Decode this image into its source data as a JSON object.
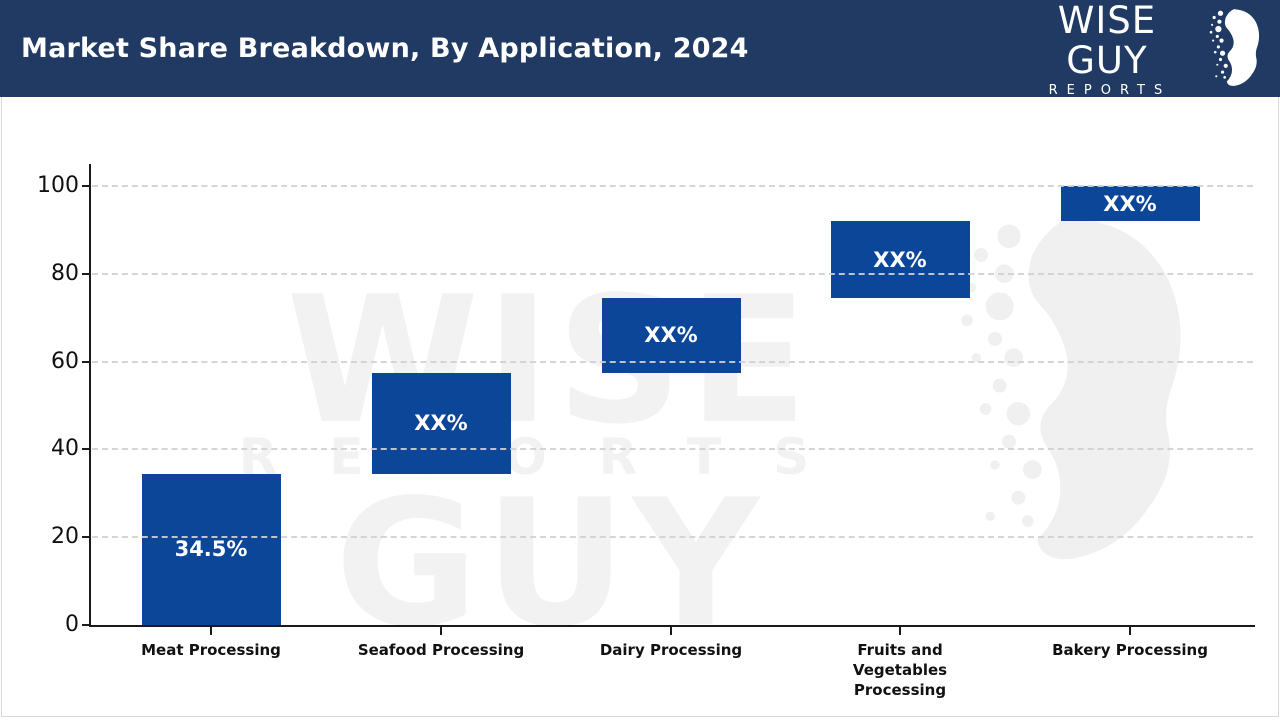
{
  "header": {
    "title": "Market Share Breakdown, By Application, 2024"
  },
  "logo": {
    "line1": "WISE GUY",
    "line2": "REPORTS"
  },
  "watermark": {
    "line1": "WISE GUY",
    "line2": "REPORTS"
  },
  "colors": {
    "header_bg": "#213A64",
    "bar": "#0B4699",
    "bar_label": "#FFFFFF",
    "axis": "#1A1A1A",
    "gridline": "#D0D0D0",
    "watermark": "#F2F2F2"
  },
  "chart_data": {
    "type": "bar",
    "subtype": "waterfall",
    "title": "Market Share Breakdown, By Application, 2024",
    "categories": [
      "Meat Processing",
      "Seafood Processing",
      "Dairy Processing",
      "Fruits and Vegetables Processing",
      "Bakery Processing"
    ],
    "segments": [
      {
        "category": "Meat Processing",
        "start": 0,
        "end": 34.5,
        "label": "34.5%"
      },
      {
        "category": "Seafood Processing",
        "start": 34.5,
        "end": 57.5,
        "label": "XX%"
      },
      {
        "category": "Dairy Processing",
        "start": 57.5,
        "end": 74.5,
        "label": "XX%"
      },
      {
        "category": "Fruits and Vegetables Processing",
        "start": 74.5,
        "end": 92,
        "label": "XX%"
      },
      {
        "category": "Bakery Processing",
        "start": 92,
        "end": 100,
        "label": "XX%"
      }
    ],
    "x_tick_labels": [
      [
        "Meat Processing"
      ],
      [
        "Seafood Processing"
      ],
      [
        "Dairy Processing"
      ],
      [
        "Fruits and",
        "Vegetables",
        "Processing"
      ],
      [
        "Bakery Processing"
      ]
    ],
    "ylim": [
      0,
      100
    ],
    "yticks": [
      0,
      20,
      40,
      60,
      80,
      100
    ],
    "grid": "dashed-horizontal",
    "legend": "none"
  }
}
